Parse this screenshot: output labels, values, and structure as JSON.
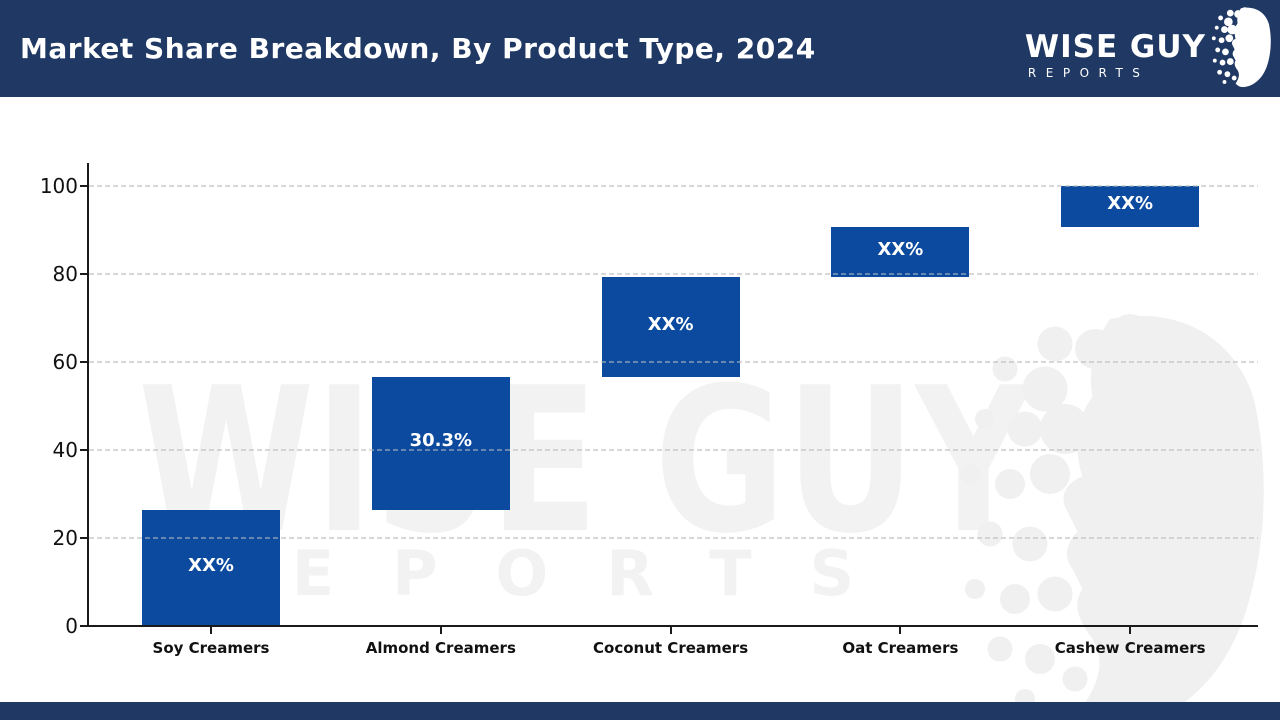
{
  "header": {
    "title": "Market Share Breakdown, By Product Type, 2024",
    "logo": {
      "line1": "WISE GUY",
      "line2": "REPORTS"
    }
  },
  "watermark": {
    "line1": "WISE GUY",
    "line2": "REPORTS"
  },
  "chart_data": {
    "type": "bar",
    "subtype": "floating-waterfall-cumulative",
    "title": "Market Share Breakdown, By Product Type, 2024",
    "categories": [
      "Soy Creamers",
      "Almond Creamers",
      "Coconut Creamers",
      "Oat Creamers",
      "Cashew Creamers"
    ],
    "bars": [
      {
        "category": "Soy Creamers",
        "label": "XX%",
        "start": 0,
        "end": 26.4
      },
      {
        "category": "Almond Creamers",
        "label": "30.3%",
        "start": 26.4,
        "end": 56.7
      },
      {
        "category": "Coconut Creamers",
        "label": "XX%",
        "start": 56.7,
        "end": 79.3
      },
      {
        "category": "Oat Creamers",
        "label": "XX%",
        "start": 79.3,
        "end": 90.7
      },
      {
        "category": "Cashew Creamers",
        "label": "XX%",
        "start": 90.7,
        "end": 100
      }
    ],
    "yticks": [
      0,
      20,
      40,
      60,
      80,
      100
    ],
    "ylim": [
      0,
      105
    ],
    "xlabel": "",
    "ylabel": "",
    "grid": "horizontal-dashed",
    "legend": "none",
    "bar_color": "#0b4a9e",
    "bar_label_color": "#ffffff"
  },
  "colors": {
    "band_navy": "#1f3864",
    "bar_blue": "#0b4a9e",
    "grid_gray": "#dcdcdc",
    "axis_black": "#1a1a1a",
    "watermark_gray": "#f2f2f2"
  }
}
